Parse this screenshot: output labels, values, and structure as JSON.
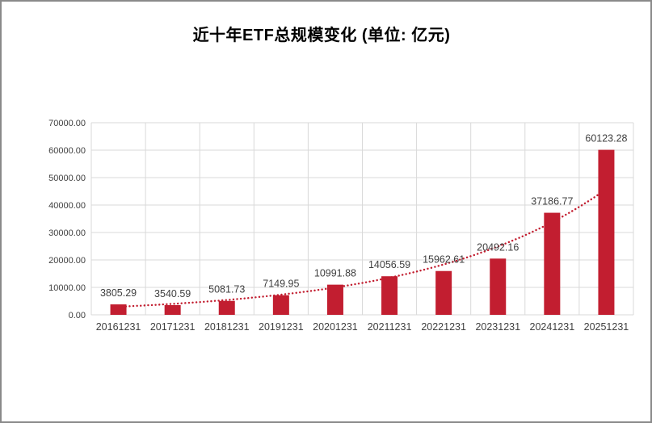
{
  "window": {
    "background": "#ffffff",
    "border_color": "#8a8a8a"
  },
  "title": {
    "text": "近十年ETF总规模变化 (单位: 亿元)"
  },
  "chart_data": {
    "type": "bar",
    "title": "近十年ETF总规模变化 (单位: 亿元)",
    "xlabel": "",
    "ylabel": "",
    "categories": [
      "20161231",
      "20171231",
      "20181231",
      "20191231",
      "20201231",
      "20211231",
      "20221231",
      "20231231",
      "20241231",
      "20251231"
    ],
    "values": [
      3805.29,
      3540.59,
      5081.73,
      7149.95,
      10991.88,
      14056.59,
      15962.61,
      20492.16,
      37186.77,
      60123.28
    ],
    "data_labels": [
      "3805.29",
      "3540.59",
      "5081.73",
      "7149.95",
      "10991.88",
      "14056.59",
      "15962.61",
      "20492.16",
      "37186.77",
      "60123.28"
    ],
    "ylim": [
      0,
      70000
    ],
    "y_tick_step": 10000,
    "y_tick_labels": [
      "0.00",
      "10000.00",
      "20000.00",
      "30000.00",
      "40000.00",
      "50000.00",
      "60000.00",
      "70000.00"
    ],
    "grid": true,
    "legend": "none",
    "trendline": {
      "style": "dotted",
      "type": "exponential",
      "start_value": 2950,
      "end_value": 45800,
      "drawn_behind_bars": true
    },
    "colors": {
      "bar": "#c21e30",
      "trendline": "#c21e30",
      "grid": "#d9d9d9",
      "axis_text": "#404040",
      "data_label_text": "#404040",
      "title_text": "#000000"
    }
  }
}
